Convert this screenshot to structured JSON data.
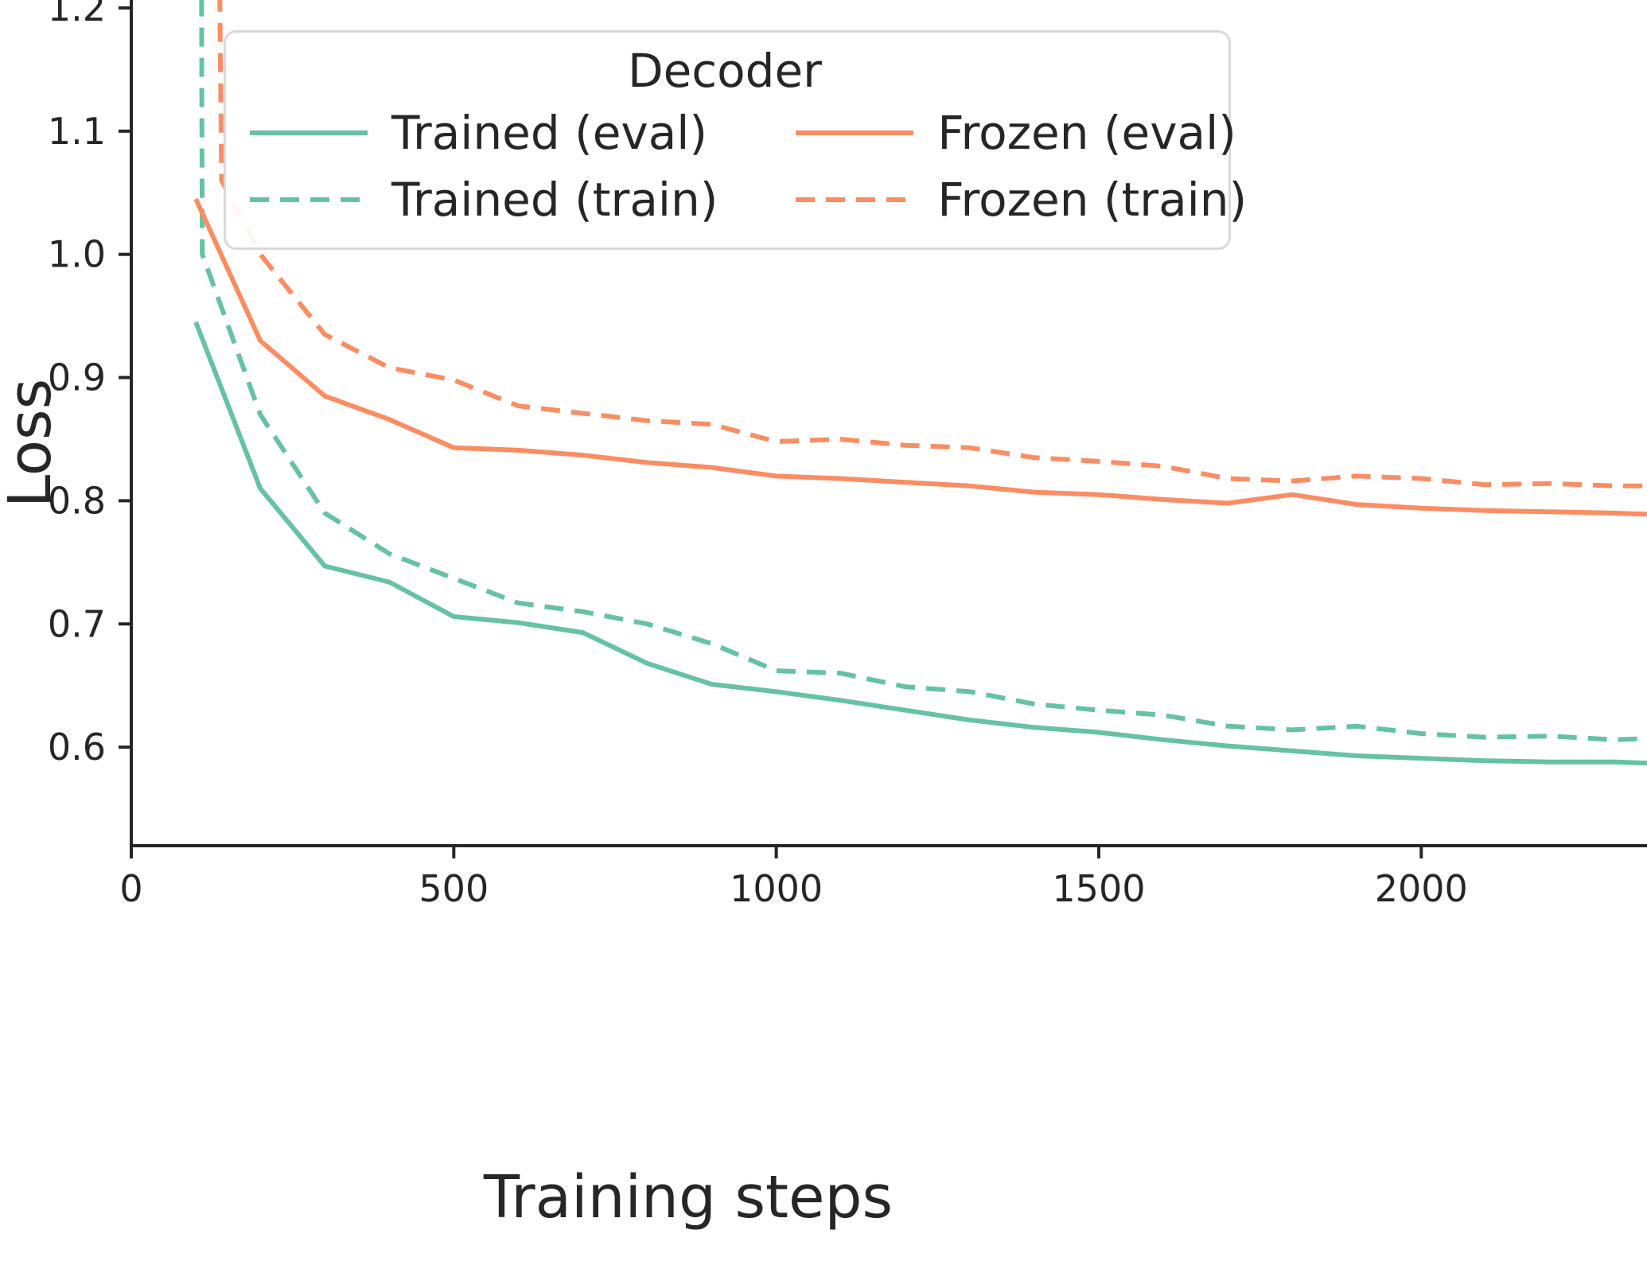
{
  "chart_data": {
    "type": "line",
    "title": "",
    "xlabel": "Training steps",
    "ylabel": "Loss",
    "xlim": [
      0,
      2350
    ],
    "ylim": [
      0.52,
      1.2
    ],
    "xticks": [
      0,
      500,
      1000,
      1500,
      2000
    ],
    "yticks": [
      0.6,
      0.7,
      0.8,
      0.9,
      1.0,
      1.1,
      1.2
    ],
    "grid": false,
    "background": "#ffffff",
    "axis_color": "#262626",
    "legend": {
      "title": "Decoder",
      "position": "upper center",
      "columns": 2,
      "row_major_order": [
        0,
        2,
        1,
        3
      ]
    },
    "x": [
      100,
      110,
      140,
      200,
      300,
      400,
      500,
      600,
      700,
      800,
      900,
      1000,
      1100,
      1200,
      1300,
      1400,
      1500,
      1600,
      1700,
      1800,
      1900,
      2000,
      2100,
      2200,
      2300,
      2350
    ],
    "series": [
      {
        "name": "Trained (eval)",
        "color": "#66c2a5",
        "style": "solid",
        "values": [
          0.945,
          null,
          null,
          0.81,
          0.747,
          0.734,
          0.706,
          0.701,
          0.693,
          0.668,
          0.651,
          0.645,
          0.638,
          0.63,
          0.622,
          0.616,
          0.612,
          0.606,
          0.601,
          0.597,
          0.593,
          0.591,
          0.589,
          0.588,
          0.588,
          0.587
        ]
      },
      {
        "name": "Trained (train)",
        "color": "#66c2a5",
        "style": "dashed",
        "values": [
          3.0,
          1.0,
          null,
          0.87,
          0.79,
          0.757,
          0.737,
          0.717,
          0.71,
          0.7,
          0.684,
          0.662,
          0.66,
          0.649,
          0.645,
          0.635,
          0.63,
          0.626,
          0.617,
          0.614,
          0.617,
          0.611,
          0.608,
          0.609,
          0.606,
          0.607
        ]
      },
      {
        "name": "Frozen (eval)",
        "color": "#fc8d62",
        "style": "solid",
        "values": [
          1.045,
          null,
          null,
          0.93,
          0.885,
          0.866,
          0.843,
          0.841,
          0.837,
          0.831,
          0.827,
          0.82,
          0.818,
          0.815,
          0.812,
          0.807,
          0.805,
          0.801,
          0.798,
          0.805,
          0.797,
          0.794,
          0.792,
          0.791,
          0.79,
          0.789
        ]
      },
      {
        "name": "Frozen (train)",
        "color": "#fc8d62",
        "style": "dashed",
        "values": [
          3.2,
          null,
          1.06,
          1.0,
          0.935,
          0.908,
          0.898,
          0.877,
          0.871,
          0.865,
          0.862,
          0.848,
          0.85,
          0.845,
          0.843,
          0.835,
          0.832,
          0.828,
          0.818,
          0.816,
          0.82,
          0.818,
          0.813,
          0.814,
          0.812,
          0.812
        ]
      }
    ]
  }
}
